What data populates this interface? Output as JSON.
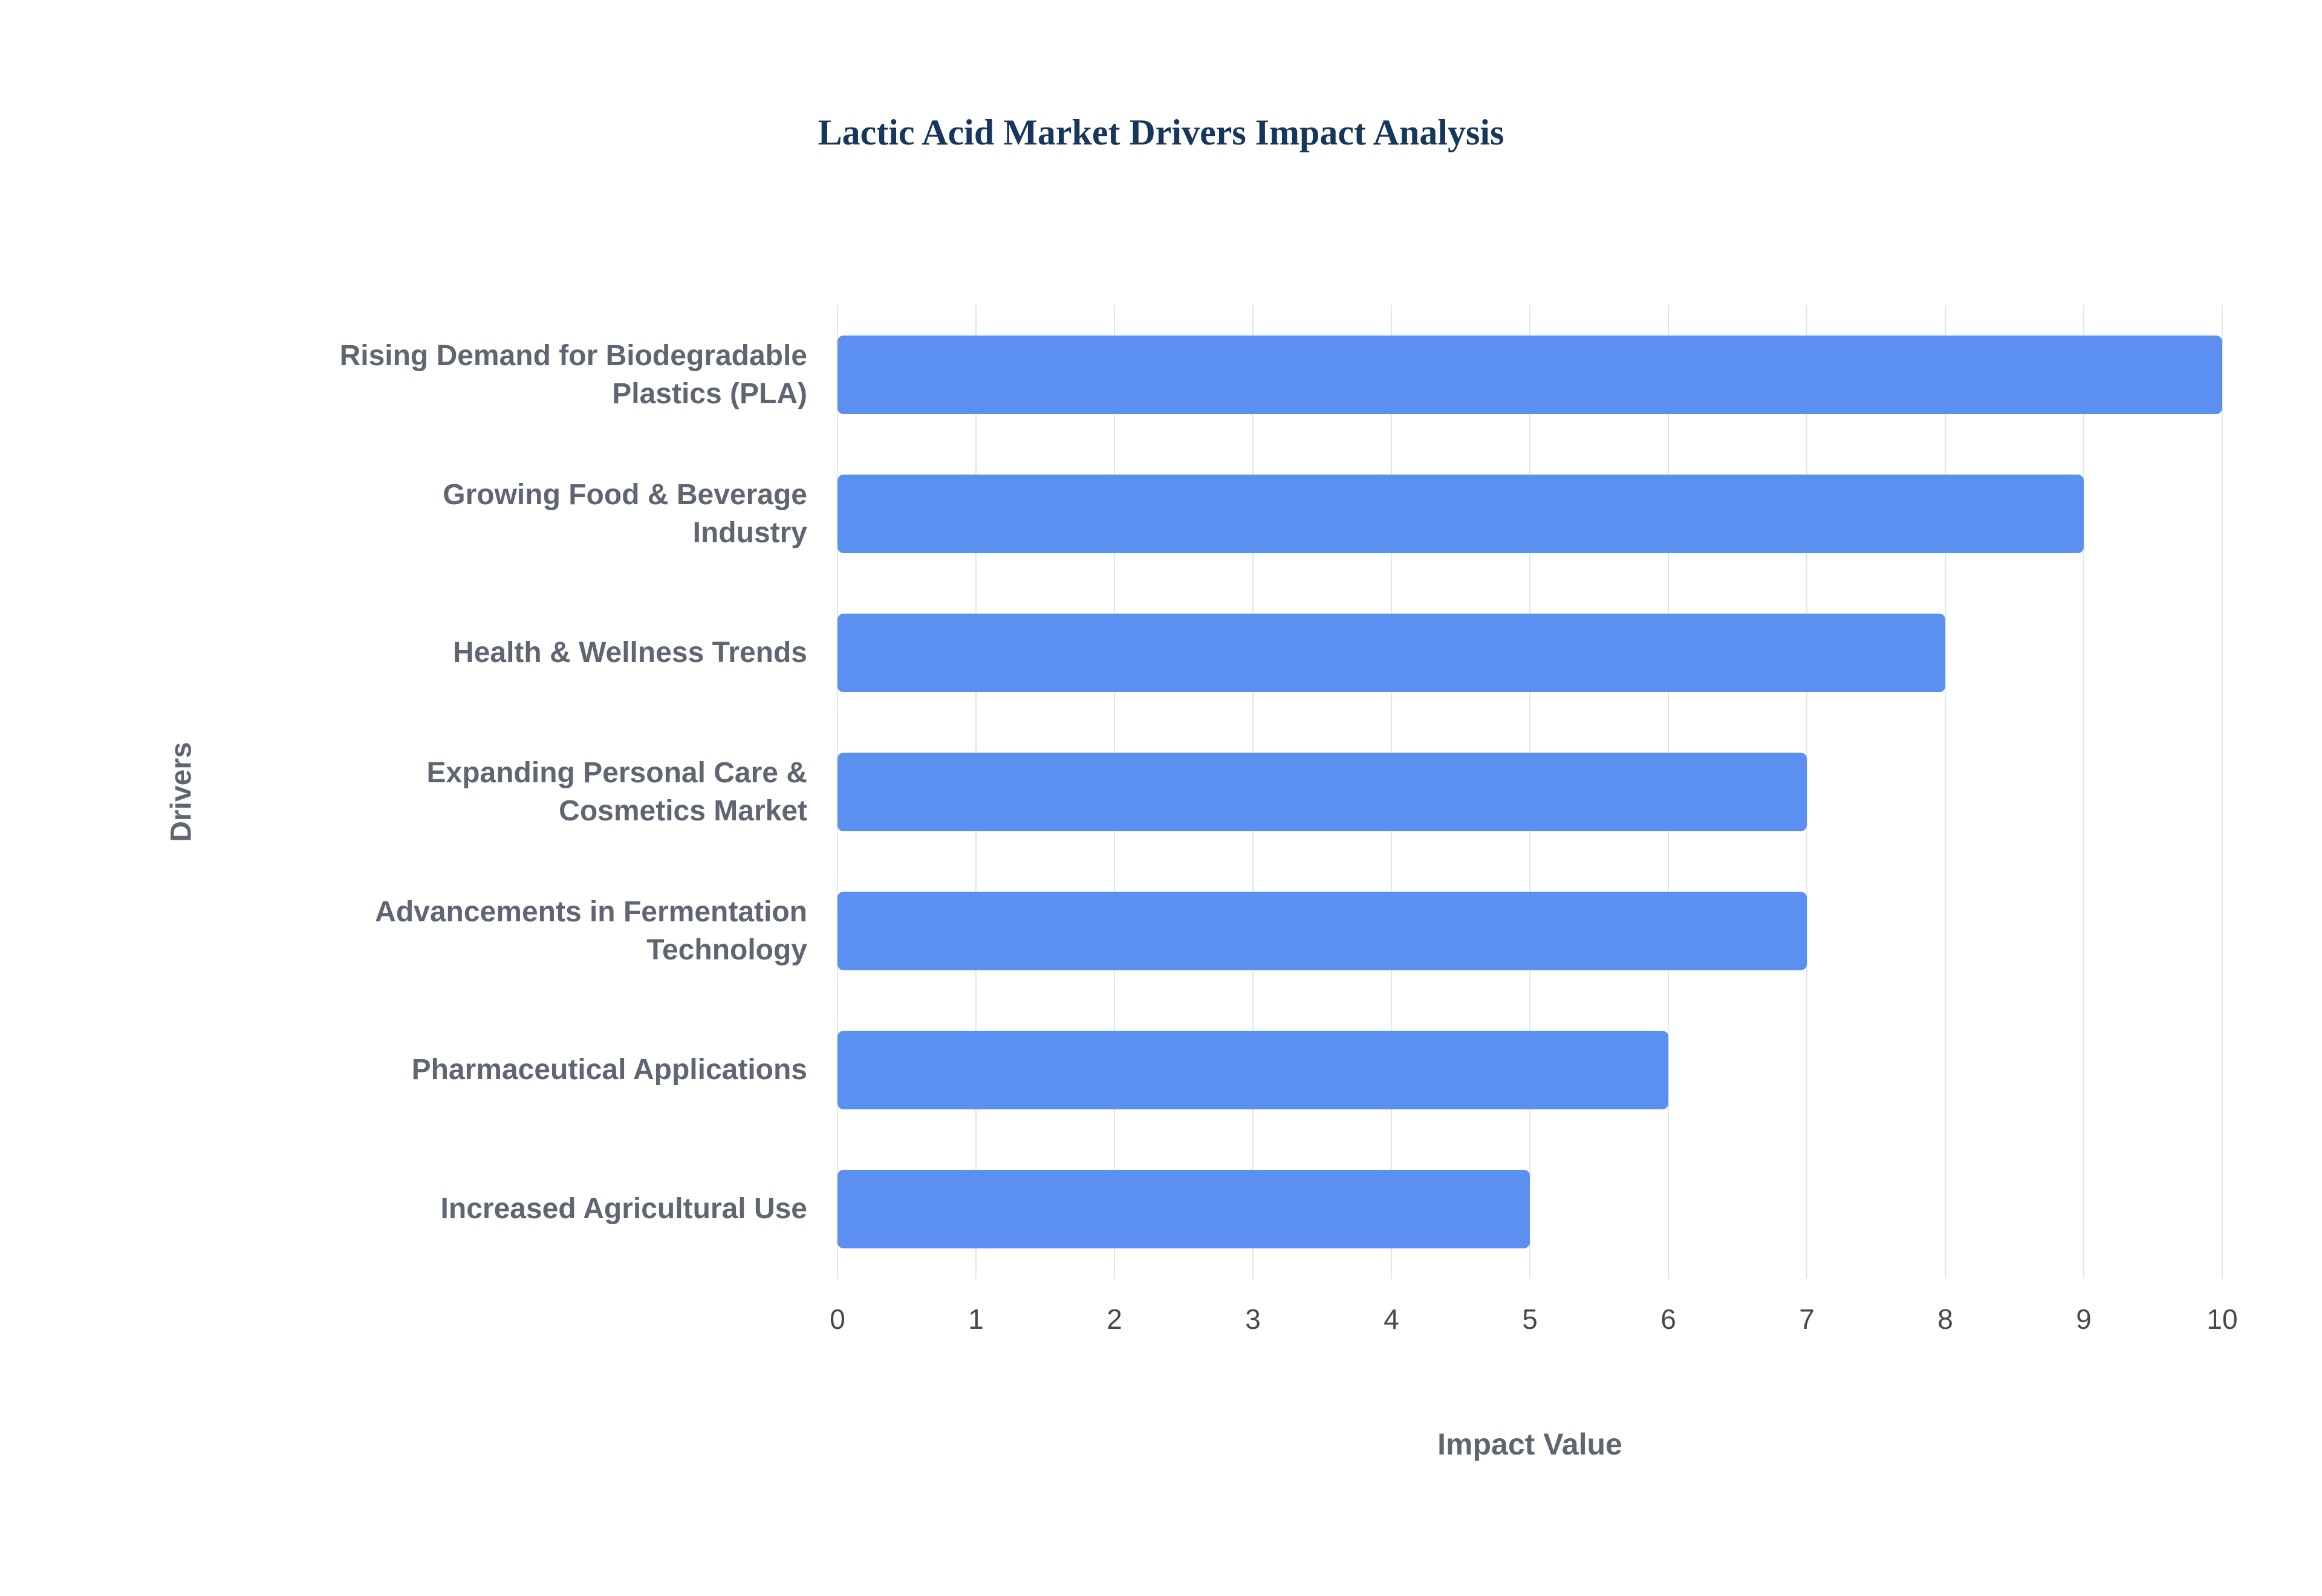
{
  "chart_data": {
    "type": "bar",
    "orientation": "horizontal",
    "title": "Lactic Acid Market Drivers Impact Analysis",
    "categories": [
      "Rising Demand for Biodegradable Plastics (PLA)",
      "Growing Food & Beverage Industry",
      "Health & Wellness Trends",
      "Expanding Personal Care & Cosmetics Market",
      "Advancements in Fermentation Technology",
      "Pharmaceutical Applications",
      "Increased Agricultural Use"
    ],
    "values": [
      10,
      9,
      8,
      7,
      7,
      6,
      5
    ],
    "xlabel": "Impact Value",
    "ylabel": "Drivers",
    "xlim": [
      0,
      10
    ],
    "xticks": [
      0,
      1,
      2,
      3,
      4,
      5,
      6,
      7,
      8,
      9,
      10
    ],
    "grid": true,
    "legend": false,
    "colors": {
      "bar": "#5b8ff0",
      "title": "#16365c",
      "axis_title": "#5f6672",
      "category_label": "#5f6672",
      "tick_label": "#45484d",
      "gridline": "#e2e5e9",
      "background": "#ffffff"
    }
  }
}
